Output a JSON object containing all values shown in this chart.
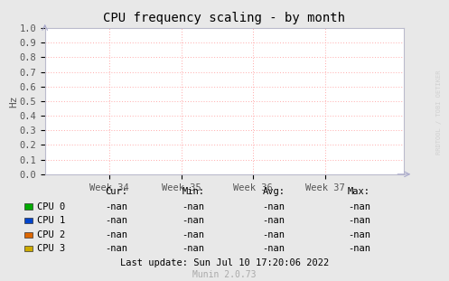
{
  "title": "CPU frequency scaling - by month",
  "ylabel": "Hz",
  "bg_color": "#e8e8e8",
  "plot_bg_color": "#ffffff",
  "grid_color": "#ffaaaa",
  "border_color": "#bbbbcc",
  "x_tick_labels": [
    "Week 34",
    "Week 35",
    "Week 36",
    "Week 37"
  ],
  "y_ticks": [
    0.0,
    0.1,
    0.2,
    0.3,
    0.4,
    0.5,
    0.6,
    0.7,
    0.8,
    0.9,
    1.0
  ],
  "ylim": [
    0.0,
    1.0
  ],
  "cpu_labels": [
    "CPU 0",
    "CPU 1",
    "CPU 2",
    "CPU 3"
  ],
  "cpu_colors": [
    "#00aa00",
    "#0044cc",
    "#dd6600",
    "#ccaa00"
  ],
  "legend_cols": [
    "Cur:",
    "Min:",
    "Avg:",
    "Max:"
  ],
  "legend_values": [
    "-nan",
    "-nan",
    "-nan",
    "-nan"
  ],
  "last_update": "Last update: Sun Jul 10 17:20:06 2022",
  "munin_version": "Munin 2.0.73",
  "watermark": "RRDTOOL / TOBI OETIKER",
  "title_fontsize": 10,
  "axis_label_fontsize": 8,
  "tick_fontsize": 7.5,
  "legend_fontsize": 7.5
}
